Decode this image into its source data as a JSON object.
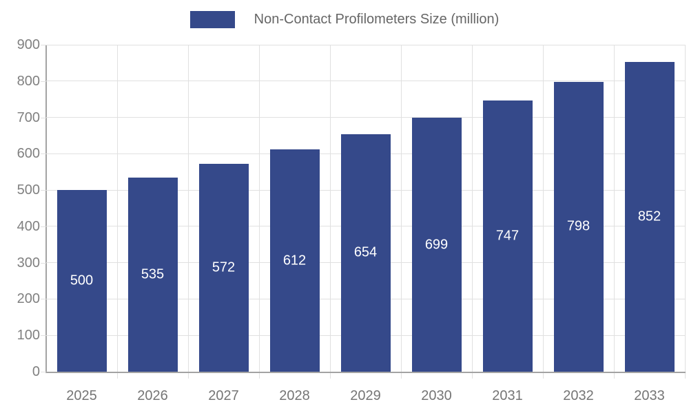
{
  "legend": {
    "label": "Non-Contact Profilometers Size (million)"
  },
  "chart_data": {
    "type": "bar",
    "title": "Non-Contact Profilometers Size (million)",
    "categories": [
      "2025",
      "2026",
      "2027",
      "2028",
      "2029",
      "2030",
      "2031",
      "2032",
      "2033"
    ],
    "values": [
      500,
      535,
      572,
      612,
      654,
      699,
      747,
      798,
      852
    ],
    "xlabel": "",
    "ylabel": "",
    "ylim": [
      0,
      900
    ],
    "ytick_interval": 100,
    "grid": true,
    "legend_position": "top-center",
    "bar_labels_inside": true
  },
  "colors": {
    "bar": "#35498a",
    "bar_label": "#ffffff",
    "grid": "#e0e0e0",
    "axis": "#a3a3a3",
    "y_tick_label": "#808080",
    "x_tick_label": "#757575",
    "legend_text": "#666666",
    "background": "#ffffff"
  }
}
